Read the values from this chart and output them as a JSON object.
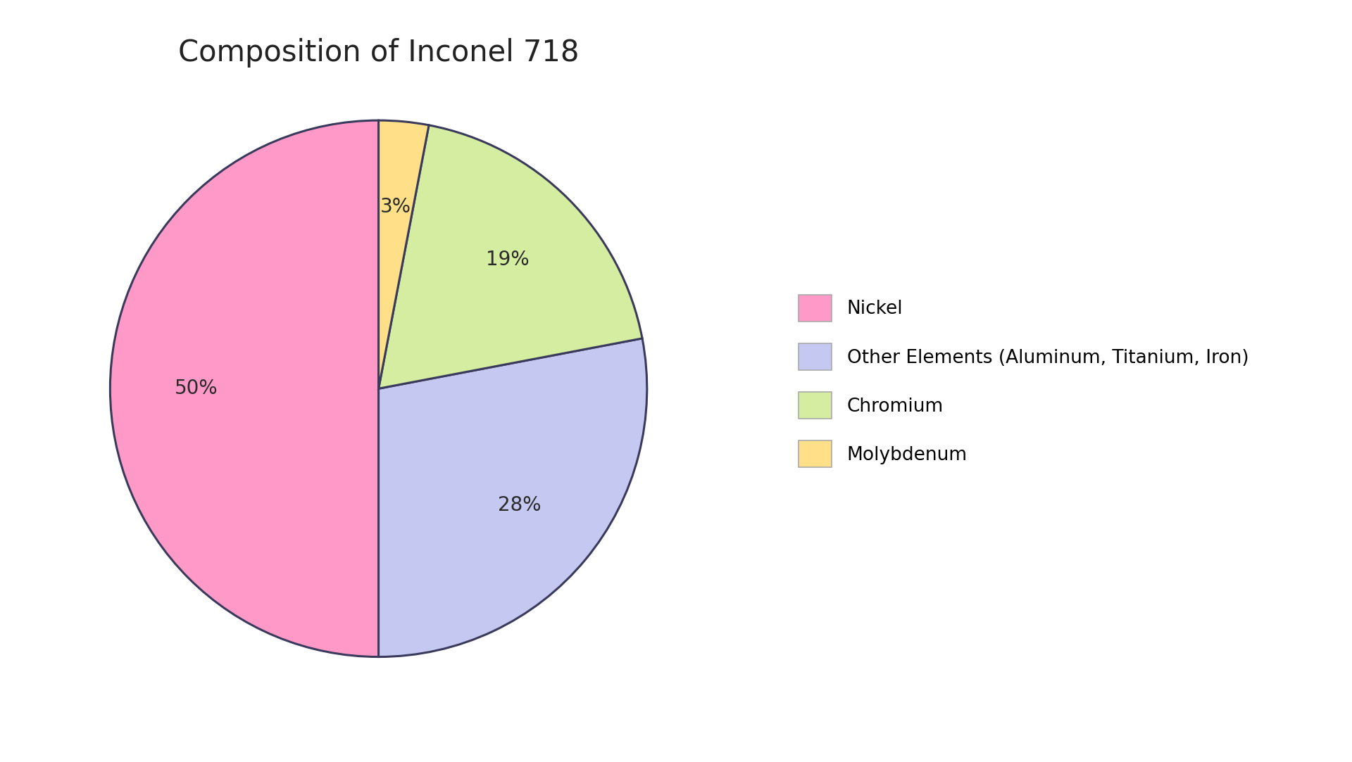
{
  "title": "Composition of Inconel 718",
  "slices": [
    {
      "label": "Nickel",
      "value": 50,
      "color": "#FF99C8"
    },
    {
      "label": "Other Elements (Aluminum, Titanium, Iron)",
      "value": 28,
      "color": "#C5C8F0"
    },
    {
      "label": "Chromium",
      "value": 19,
      "color": "#D4EDA0"
    },
    {
      "label": "Molybdenum",
      "value": 3,
      "color": "#FFE088"
    }
  ],
  "title_fontsize": 30,
  "autopct_fontsize": 20,
  "legend_fontsize": 19,
  "edge_color": "#3a3a5c",
  "edge_linewidth": 2.2,
  "background_color": "#FFFFFF",
  "start_angle": 90,
  "pct_distance": 0.68
}
